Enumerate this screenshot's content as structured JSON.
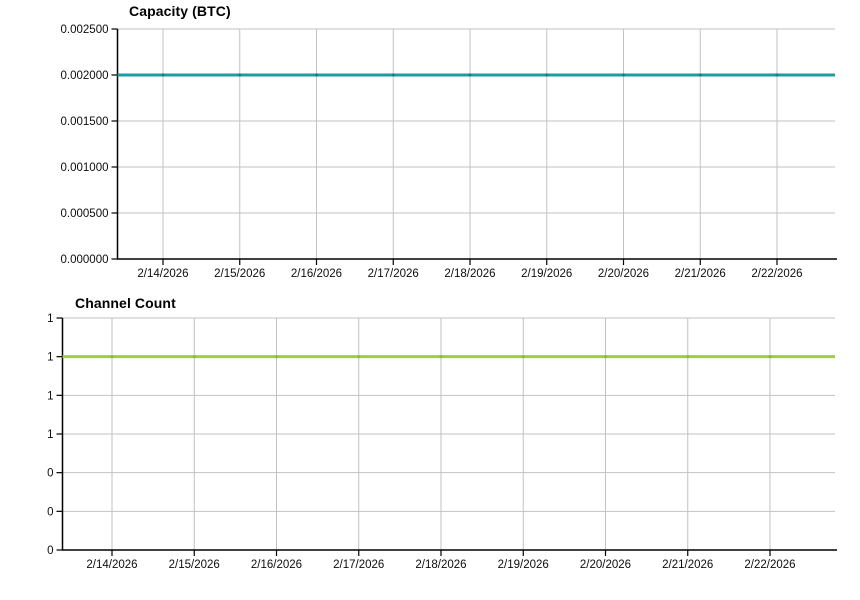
{
  "page": {
    "background": "#ffffff"
  },
  "colors": {
    "axis": "#000000",
    "gridline": "#c2c2c2",
    "tick_text": "#0d0d0d",
    "title_text": "#000000",
    "capacity_line": "#1a9da3",
    "capacity_marker": "#117f85",
    "channel_line": "#a0ce3e",
    "channel_marker": "#8bbc2f"
  },
  "chart_data": [
    {
      "type": "line",
      "title": "Capacity (BTC)",
      "x": [
        "2/14/2026",
        "2/15/2026",
        "2/16/2026",
        "2/17/2026",
        "2/18/2026",
        "2/19/2026",
        "2/20/2026",
        "2/21/2026",
        "2/22/2026"
      ],
      "series": [
        {
          "name": "Capacity (BTC)",
          "values": [
            0.002,
            0.002,
            0.002,
            0.002,
            0.002,
            0.002,
            0.002,
            0.002,
            0.002
          ],
          "color": "#1a9da3",
          "marker_color": "#117f85"
        }
      ],
      "ylim": [
        0,
        0.0025
      ],
      "y_ticks": [
        0.0025,
        0.002,
        0.0015,
        0.001,
        0.0005,
        0
      ],
      "y_tick_labels": [
        "0.002500",
        "0.002000",
        "0.001500",
        "0.001000",
        "0.000500",
        "0.000000"
      ],
      "xlabel": "",
      "ylabel": "",
      "grid": "on",
      "legend": "none"
    },
    {
      "type": "line",
      "title": "Channel Count",
      "x": [
        "2/14/2026",
        "2/15/2026",
        "2/16/2026",
        "2/17/2026",
        "2/18/2026",
        "2/19/2026",
        "2/20/2026",
        "2/21/2026",
        "2/22/2026"
      ],
      "series": [
        {
          "name": "Channel Count",
          "values": [
            1,
            1,
            1,
            1,
            1,
            1,
            1,
            1,
            1
          ],
          "color": "#a0ce3e",
          "marker_color": "#8bbc2f"
        }
      ],
      "ylim": [
        0,
        1.2
      ],
      "y_ticks": [
        1.2,
        1.0,
        0.8,
        0.6,
        0.4,
        0.2,
        0
      ],
      "y_tick_labels": [
        "1",
        "1",
        "1",
        "1",
        "0",
        "0",
        "0"
      ],
      "xlabel": "",
      "ylabel": "",
      "grid": "on",
      "legend": "none"
    }
  ]
}
